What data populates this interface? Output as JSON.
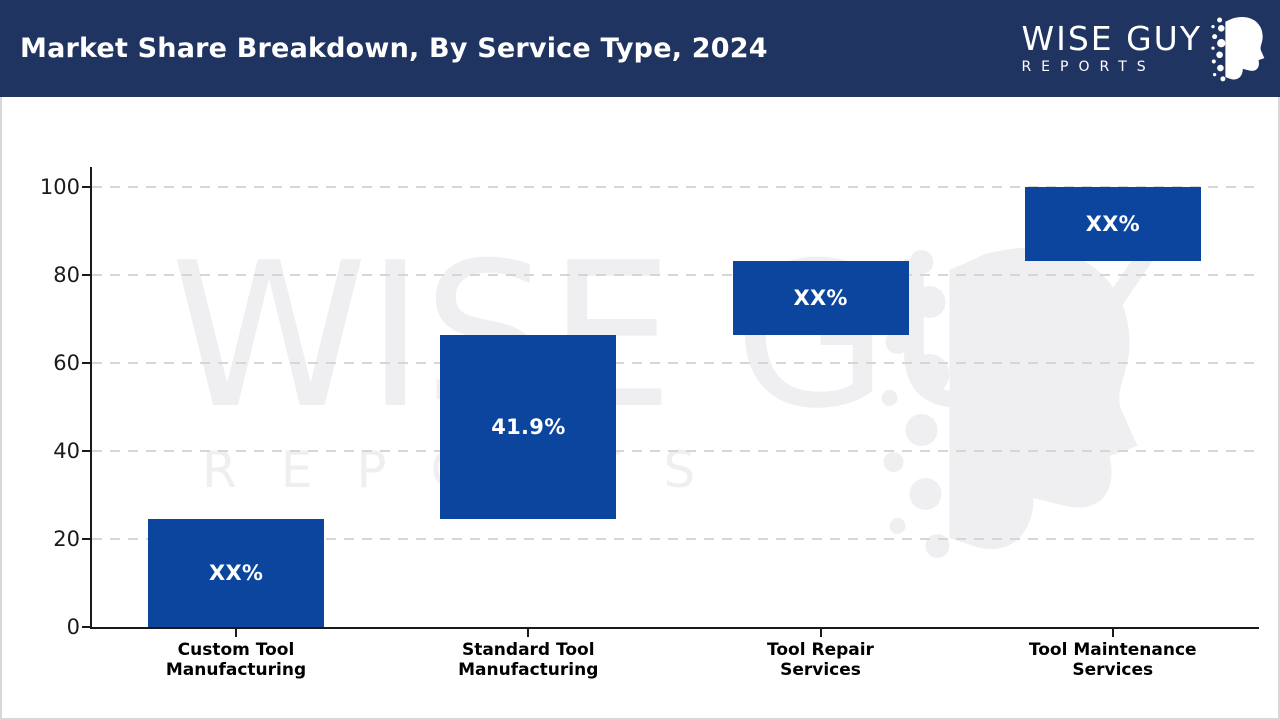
{
  "header": {
    "title": "Market Share Breakdown, By Service Type, 2024",
    "brand": {
      "name_top": "WISE GUY",
      "name_bottom": "REPORTS"
    }
  },
  "watermark": {
    "text_top": "WISE GUY",
    "text_bottom": "REPORTS"
  },
  "chart_data": {
    "type": "bar",
    "variant": "stacked-waterfall",
    "title": "Market Share Breakdown, By Service Type, 2024",
    "unit": "%",
    "ylim": [
      0,
      100
    ],
    "yticks": [
      0,
      20,
      40,
      60,
      80,
      100
    ],
    "grid": {
      "horizontal": true,
      "style": "dashed",
      "color": "#d6d6d6"
    },
    "bar_color": "#0c459e",
    "value_label_color": "#ffffff",
    "categories": [
      {
        "line1": "Custom Tool",
        "line2": "Manufacturing"
      },
      {
        "line1": "Standard Tool",
        "line2": "Manufacturing"
      },
      {
        "line1": "Tool Repair",
        "line2": "Services"
      },
      {
        "line1": "Tool Maintenance",
        "line2": "Services"
      }
    ],
    "segments": [
      {
        "category": "Custom Tool Manufacturing",
        "start": 0,
        "end": 24.5,
        "value_label": "XX%"
      },
      {
        "category": "Standard Tool Manufacturing",
        "start": 24.5,
        "end": 66.4,
        "value": 41.9,
        "value_label": "41.9%"
      },
      {
        "category": "Tool Repair Services",
        "start": 66.4,
        "end": 83.2,
        "value_label": "XX%"
      },
      {
        "category": "Tool Maintenance Services",
        "start": 83.2,
        "end": 100,
        "value_label": "XX%"
      }
    ]
  },
  "colors": {
    "header_bg": "#1f3460",
    "bar": "#0c459e",
    "watermark": "#efeff1",
    "axis": "#1a1a1a",
    "grid": "#d6d6d6",
    "figure_border": "#d8d8d8"
  }
}
